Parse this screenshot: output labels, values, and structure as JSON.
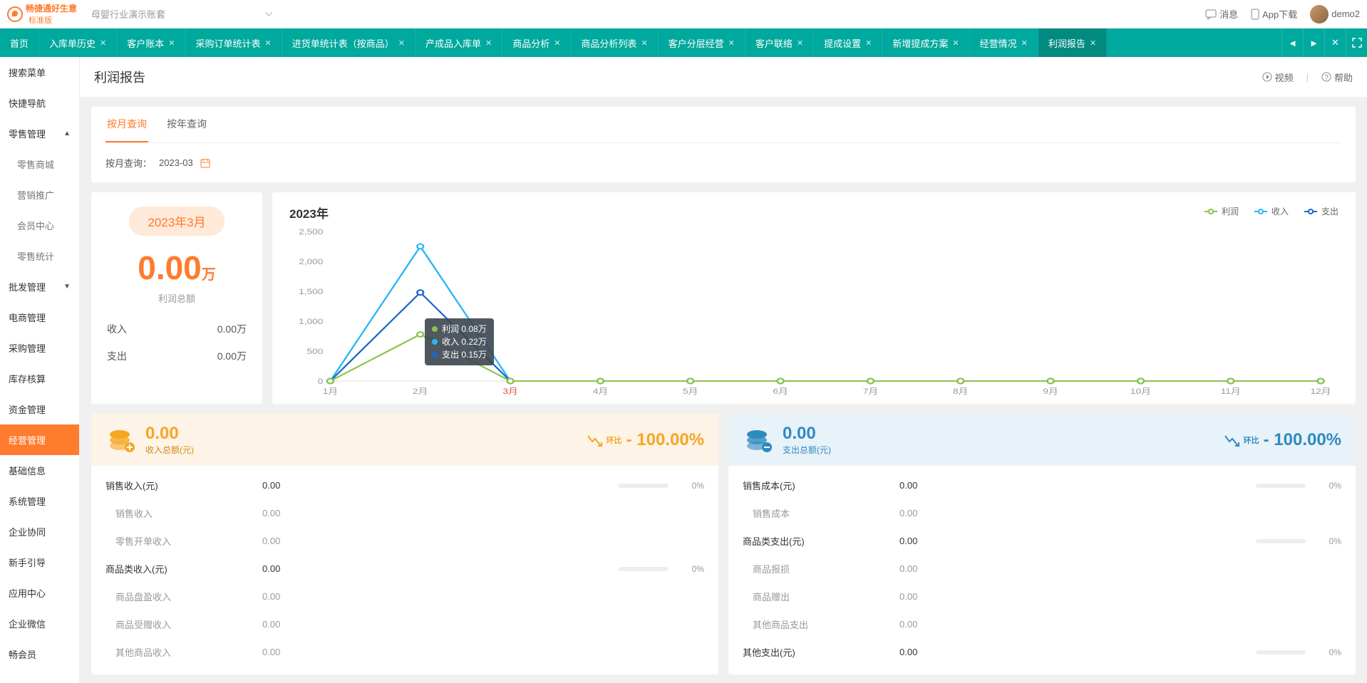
{
  "brand": {
    "name": "畅捷通好生意",
    "edition": "标准版"
  },
  "account_select": "母婴行业演示账套",
  "top_right": {
    "msg": "消息",
    "app": "App下载",
    "user": "demo2"
  },
  "tabs": [
    {
      "label": "首页",
      "close": false
    },
    {
      "label": "入库单历史",
      "close": true
    },
    {
      "label": "客户账本",
      "close": true
    },
    {
      "label": "采购订单统计表",
      "close": true
    },
    {
      "label": "进货单统计表（按商品）",
      "close": true
    },
    {
      "label": "产成品入库单",
      "close": true
    },
    {
      "label": "商品分析",
      "close": true
    },
    {
      "label": "商品分析列表",
      "close": true
    },
    {
      "label": "客户分层经营",
      "close": true
    },
    {
      "label": "客户联络",
      "close": true
    },
    {
      "label": "提成设置",
      "close": true
    },
    {
      "label": "新增提成方案",
      "close": true
    },
    {
      "label": "经营情况",
      "close": true
    },
    {
      "label": "利润报告",
      "close": true,
      "active": true
    }
  ],
  "sidebar": [
    {
      "label": "搜索菜单",
      "type": "section"
    },
    {
      "label": "快捷导航",
      "type": "section"
    },
    {
      "label": "零售管理",
      "type": "section",
      "caret": "▲"
    },
    {
      "label": "零售商城",
      "type": "sub"
    },
    {
      "label": "营销推广",
      "type": "sub"
    },
    {
      "label": "会员中心",
      "type": "sub"
    },
    {
      "label": "零售统计",
      "type": "sub"
    },
    {
      "label": "批发管理",
      "type": "section",
      "caret": "▼"
    },
    {
      "label": "电商管理",
      "type": "section"
    },
    {
      "label": "采购管理",
      "type": "section"
    },
    {
      "label": "库存核算",
      "type": "section"
    },
    {
      "label": "资金管理",
      "type": "section"
    },
    {
      "label": "经营管理",
      "type": "section",
      "active": true
    },
    {
      "label": "基础信息",
      "type": "section"
    },
    {
      "label": "系统管理",
      "type": "section"
    },
    {
      "label": "企业协同",
      "type": "section"
    },
    {
      "label": "新手引导",
      "type": "section"
    },
    {
      "label": "应用中心",
      "type": "section"
    },
    {
      "label": "企业微信",
      "type": "section"
    },
    {
      "label": "畅会员",
      "type": "section"
    }
  ],
  "page": {
    "title": "利润报告",
    "video": "视频",
    "help": "帮助"
  },
  "query": {
    "tab_month": "按月查询",
    "tab_year": "按年查询",
    "label": "按月查询：",
    "value": "2023-03"
  },
  "summary": {
    "month_badge": "2023年3月",
    "total_value": "0.00",
    "total_unit": "万",
    "total_label": "利润总额",
    "income_label": "收入",
    "income_value": "0.00万",
    "expense_label": "支出",
    "expense_value": "0.00万"
  },
  "chart": {
    "title": "2023年",
    "legend": [
      {
        "label": "利润",
        "color": "#8bc34a"
      },
      {
        "label": "收入",
        "color": "#29b6f6"
      },
      {
        "label": "支出",
        "color": "#1e66c9"
      }
    ],
    "y_ticks": [
      "2,500",
      "2,000",
      "1,500",
      "1,000",
      "500",
      "0"
    ],
    "x_labels": [
      "1月",
      "2月",
      "3月",
      "4月",
      "5月",
      "6月",
      "7月",
      "8月",
      "9月",
      "10月",
      "11月",
      "12月"
    ],
    "highlight_x": 2,
    "series": {
      "profit": [
        0,
        780,
        0,
        0,
        0,
        0,
        0,
        0,
        0,
        0,
        0,
        0
      ],
      "income": [
        0,
        2250,
        0,
        0,
        0,
        0,
        0,
        0,
        0,
        0,
        0,
        0
      ],
      "expense": [
        0,
        1480,
        0,
        0,
        0,
        0,
        0,
        0,
        0,
        0,
        0,
        0
      ]
    },
    "y_max": 2500,
    "tooltip": [
      {
        "label": "利润 0.08万",
        "color": "#8bc34a"
      },
      {
        "label": "收入 0.22万",
        "color": "#29b6f6"
      },
      {
        "label": "支出 0.15万",
        "color": "#1e66c9"
      }
    ]
  },
  "panels": [
    {
      "theme": "orange",
      "head_value": "0.00",
      "head_label": "收入总额(元)",
      "hb": "环比",
      "delta": "- 100.00%",
      "rows": [
        {
          "lbl": "销售收入(元)",
          "val": "0.00",
          "pct": "0%",
          "main": true
        },
        {
          "lbl": "销售收入",
          "val": "0.00",
          "main": false
        },
        {
          "lbl": "零售开单收入",
          "val": "0.00",
          "main": false
        },
        {
          "lbl": "商品类收入(元)",
          "val": "0.00",
          "pct": "0%",
          "main": true
        },
        {
          "lbl": "商品盘盈收入",
          "val": "0.00",
          "main": false
        },
        {
          "lbl": "商品受赠收入",
          "val": "0.00",
          "main": false
        },
        {
          "lbl": "其他商品收入",
          "val": "0.00",
          "main": false
        }
      ]
    },
    {
      "theme": "blue",
      "head_value": "0.00",
      "head_label": "支出总额(元)",
      "hb": "环比",
      "delta": "- 100.00%",
      "rows": [
        {
          "lbl": "销售成本(元)",
          "val": "0.00",
          "pct": "0%",
          "main": true
        },
        {
          "lbl": "销售成本",
          "val": "0.00",
          "main": false
        },
        {
          "lbl": "商品类支出(元)",
          "val": "0.00",
          "pct": "0%",
          "main": true
        },
        {
          "lbl": "商品报损",
          "val": "0.00",
          "main": false
        },
        {
          "lbl": "商品赠出",
          "val": "0.00",
          "main": false
        },
        {
          "lbl": "其他商品支出",
          "val": "0.00",
          "main": false
        },
        {
          "lbl": "其他支出(元)",
          "val": "0.00",
          "pct": "0%",
          "main": true
        }
      ]
    }
  ]
}
